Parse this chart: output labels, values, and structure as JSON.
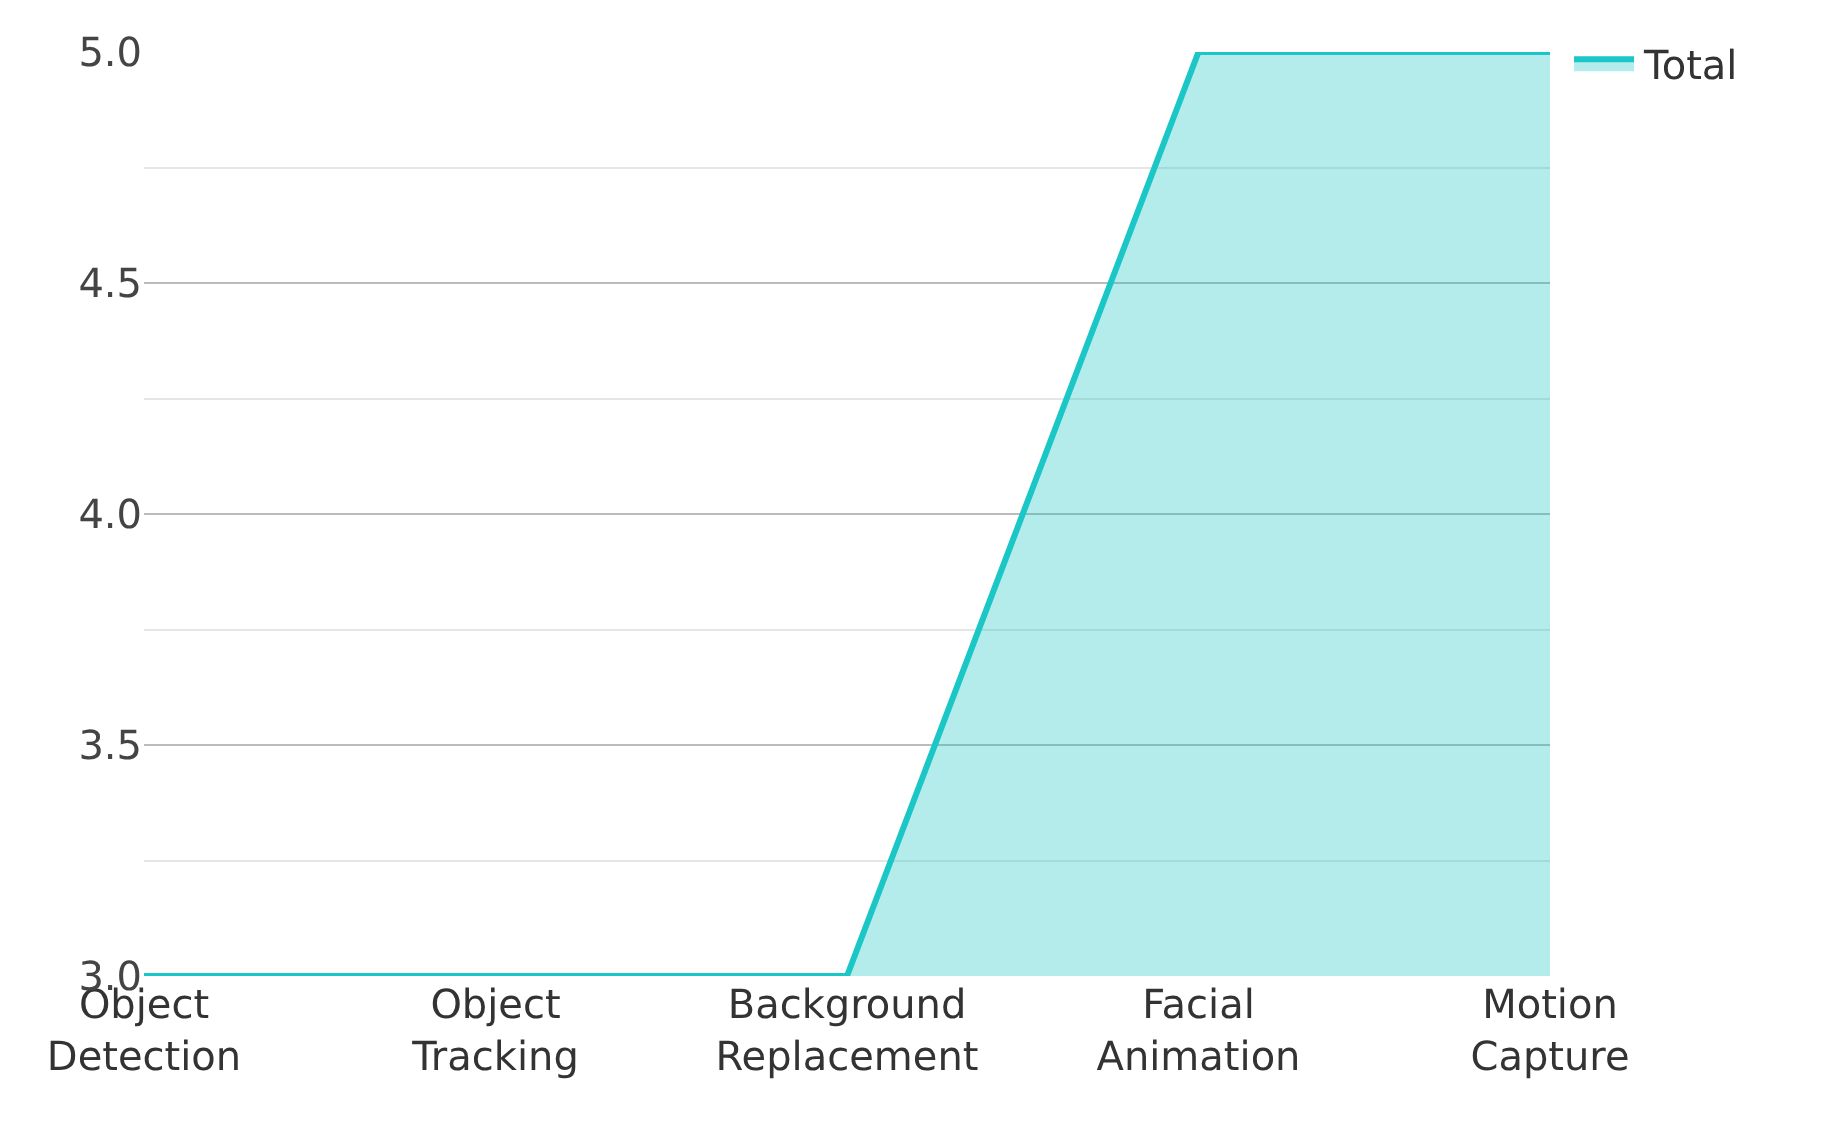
{
  "chart_data": {
    "type": "area",
    "categories": [
      "Object Detection",
      "Object Tracking",
      "Background Replacement",
      "Facial Animation",
      "Motion Capture"
    ],
    "series": [
      {
        "name": "Total",
        "color": "#1ac6c6",
        "values": [
          3,
          3,
          3,
          5,
          5
        ]
      }
    ],
    "ylim": [
      3,
      5
    ],
    "yticks": [
      {
        "value": 3,
        "label": "3.0"
      },
      {
        "value": 3.5,
        "label": "3.5"
      },
      {
        "value": 4,
        "label": "4.0"
      },
      {
        "value": 4.5,
        "label": "4.5"
      },
      {
        "value": 5,
        "label": "5.0"
      }
    ],
    "grid": "y",
    "legend": "top right"
  }
}
